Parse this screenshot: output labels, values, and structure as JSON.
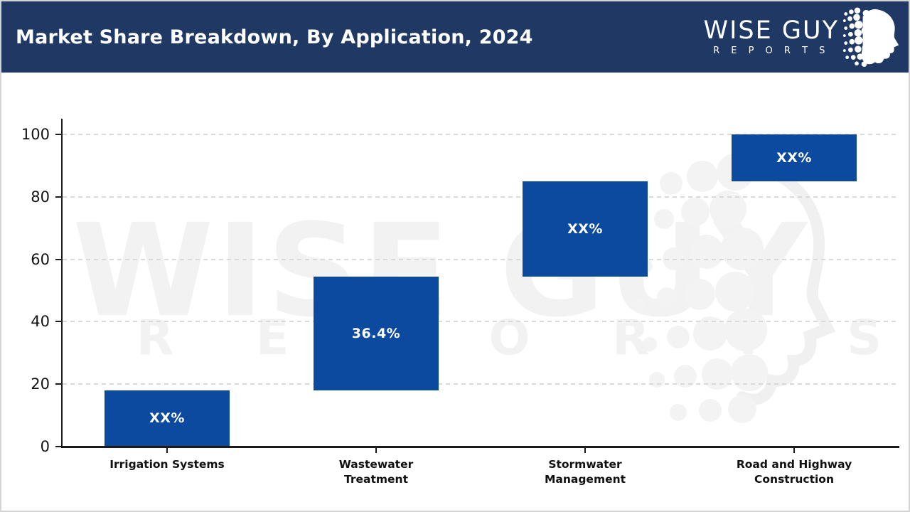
{
  "header": {
    "title": "Market Share Breakdown, By Application, 2024",
    "logo": {
      "name": "WISE GUY",
      "tagline": "R E P O R T S"
    }
  },
  "watermark": {
    "line1": "WISE GUY",
    "line2": "R E P O R T S"
  },
  "chart_data": {
    "type": "bar",
    "variant": "waterfall",
    "title": "Market Share Breakdown, By Application, 2024",
    "categories": [
      "Irrigation Systems",
      "Wastewater\nTreatment",
      "Stormwater\nManagement",
      "Road and Highway\nConstruction"
    ],
    "segments": [
      {
        "category": "Irrigation Systems",
        "start": 0,
        "end": 18,
        "value": 18,
        "label": "XX%"
      },
      {
        "category": "Wastewater Treatment",
        "start": 18,
        "end": 54.4,
        "value": 36.4,
        "label": "36.4%"
      },
      {
        "category": "Stormwater Management",
        "start": 54.4,
        "end": 85,
        "value": 30.6,
        "label": "XX%"
      },
      {
        "category": "Road and Highway Construction",
        "start": 85,
        "end": 100,
        "value": 15,
        "label": "XX%"
      }
    ],
    "yticks": [
      0,
      20,
      40,
      60,
      80,
      100
    ],
    "ylim": [
      0,
      105
    ],
    "xlabel": "",
    "ylabel": "",
    "grid": "horizontal-dashed",
    "legend_position": "none",
    "bar_color": "#0C4AA0",
    "header_color": "#1F3864",
    "label_color": "#ffffff"
  }
}
